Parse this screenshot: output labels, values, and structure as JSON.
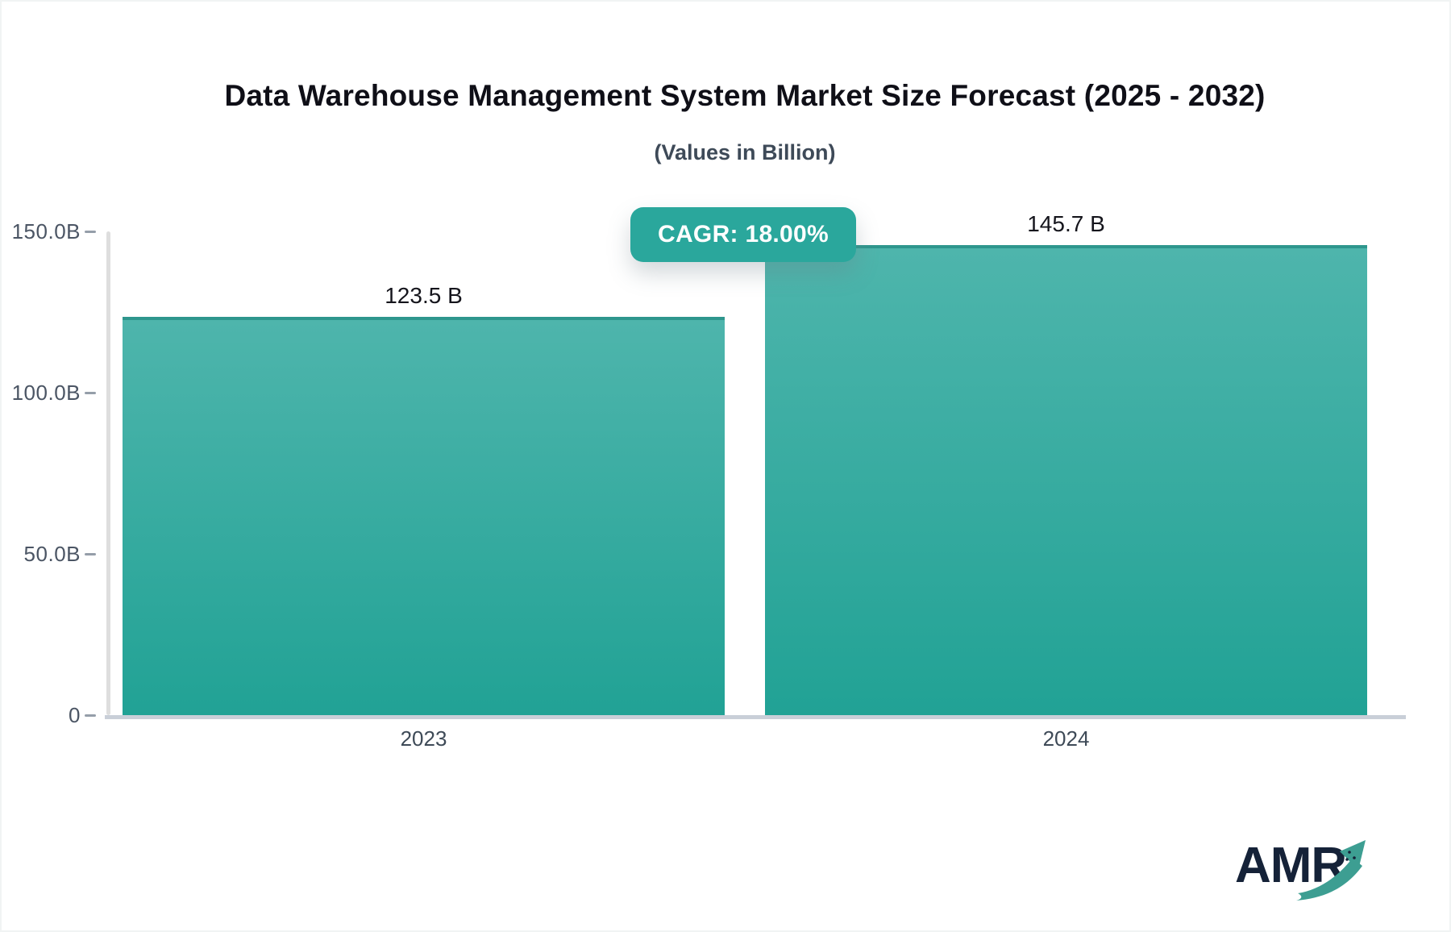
{
  "header": {
    "title": "Data Warehouse Management System Market Size Forecast (2025 - 2032)",
    "subtitle": "(Values in Billion)"
  },
  "chart_data": {
    "type": "bar",
    "title": "Data Warehouse Management System Market Size Forecast (2025 - 2032)",
    "subtitle": "(Values in Billion)",
    "categories": [
      "2023",
      "2024"
    ],
    "values": [
      123.5,
      145.7
    ],
    "value_labels": [
      "123.5 B",
      "145.7 B"
    ],
    "annotation": "CAGR: 18.00%",
    "xlabel": "",
    "ylabel": "",
    "ylim": [
      0,
      150
    ],
    "yticks": [
      {
        "value": 150,
        "label": "150.0B"
      },
      {
        "value": 100,
        "label": "100.0B"
      },
      {
        "value": 50,
        "label": "50.0B"
      },
      {
        "value": 0,
        "label": "0"
      }
    ],
    "grid": false,
    "legend": "none",
    "bar_gradient_top": "#4eb5ac",
    "bar_gradient_bottom": "#21a295",
    "bar_top_border": "#2e968d"
  },
  "colors": {
    "badge_background": "#2aa79c",
    "badge_text": "#ffffff",
    "title_text": "#0f0f17",
    "subtitle_text": "#3e4a58",
    "axis_line": "#dedede",
    "baseline": "#c9cfd8",
    "tick_text": "#4b5564",
    "logo_navy": "#152238",
    "logo_teal": "#3d9e92"
  },
  "logo": {
    "text": "AMR"
  }
}
